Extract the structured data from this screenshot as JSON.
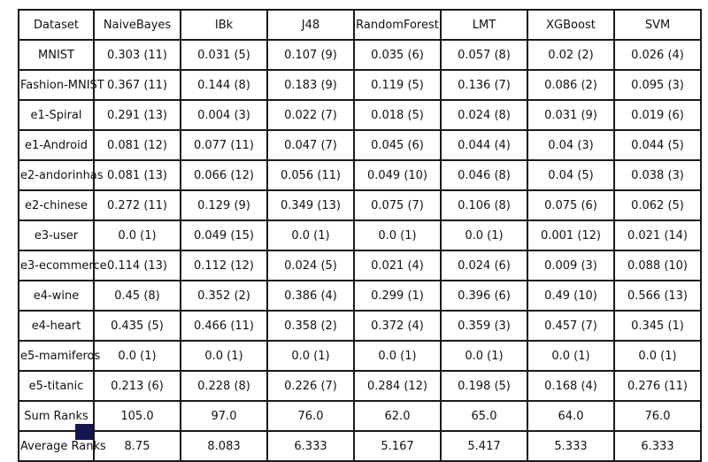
{
  "figure": {
    "background_color": "#ffffff",
    "grid_border_color": "#1a1a1a",
    "text_color": "#111111",
    "bottom_left_marker_color": "#16164f"
  },
  "chart_data": {
    "type": "table",
    "columns": [
      "Dataset",
      "NaiveBayes",
      "IBk",
      "J48",
      "RandomForest",
      "LMT",
      "XGBoost",
      "SVM"
    ],
    "rows": [
      {
        "dataset": "MNIST",
        "cells": [
          "0.303 (11)",
          "0.031 (5)",
          "0.107 (9)",
          "0.035 (6)",
          "0.057 (8)",
          "0.02 (2)",
          "0.026 (4)"
        ]
      },
      {
        "dataset": "Fashion-MNIST",
        "cells": [
          "0.367 (11)",
          "0.144 (8)",
          "0.183 (9)",
          "0.119 (5)",
          "0.136 (7)",
          "0.086 (2)",
          "0.095 (3)"
        ]
      },
      {
        "dataset": "e1-Spiral",
        "cells": [
          "0.291 (13)",
          "0.004 (3)",
          "0.022 (7)",
          "0.018 (5)",
          "0.024 (8)",
          "0.031 (9)",
          "0.019 (6)"
        ]
      },
      {
        "dataset": "e1-Android",
        "cells": [
          "0.081 (12)",
          "0.077 (11)",
          "0.047 (7)",
          "0.045 (6)",
          "0.044 (4)",
          "0.04 (3)",
          "0.044 (5)"
        ]
      },
      {
        "dataset": "e2-andorinhas",
        "cells": [
          "0.081 (13)",
          "0.066 (12)",
          "0.056 (11)",
          "0.049 (10)",
          "0.046 (8)",
          "0.04 (5)",
          "0.038 (3)"
        ]
      },
      {
        "dataset": "e2-chinese",
        "cells": [
          "0.272 (11)",
          "0.129 (9)",
          "0.349 (13)",
          "0.075 (7)",
          "0.106 (8)",
          "0.075 (6)",
          "0.062 (5)"
        ]
      },
      {
        "dataset": "e3-user",
        "cells": [
          "0.0 (1)",
          "0.049 (15)",
          "0.0 (1)",
          "0.0 (1)",
          "0.0 (1)",
          "0.001 (12)",
          "0.021 (14)"
        ]
      },
      {
        "dataset": "e3-ecommerce",
        "cells": [
          "0.114 (13)",
          "0.112 (12)",
          "0.024 (5)",
          "0.021 (4)",
          "0.024 (6)",
          "0.009 (3)",
          "0.088 (10)"
        ]
      },
      {
        "dataset": "e4-wine",
        "cells": [
          "0.45 (8)",
          "0.352 (2)",
          "0.386 (4)",
          "0.299 (1)",
          "0.396 (6)",
          "0.49 (10)",
          "0.566 (13)"
        ]
      },
      {
        "dataset": "e4-heart",
        "cells": [
          "0.435 (5)",
          "0.466 (11)",
          "0.358 (2)",
          "0.372 (4)",
          "0.359 (3)",
          "0.457 (7)",
          "0.345 (1)"
        ]
      },
      {
        "dataset": "e5-mamiferos",
        "cells": [
          "0.0 (1)",
          "0.0 (1)",
          "0.0 (1)",
          "0.0 (1)",
          "0.0 (1)",
          "0.0 (1)",
          "0.0 (1)"
        ]
      },
      {
        "dataset": "e5-titanic",
        "cells": [
          "0.213 (6)",
          "0.228 (8)",
          "0.226 (7)",
          "0.284 (12)",
          "0.198 (5)",
          "0.168 (4)",
          "0.276 (11)"
        ]
      },
      {
        "dataset": "Sum Ranks",
        "cells": [
          "105.0",
          "97.0",
          "76.0",
          "62.0",
          "65.0",
          "64.0",
          "76.0"
        ]
      },
      {
        "dataset": "Average Ranks",
        "cells": [
          "8.75",
          "8.083",
          "6.333",
          "5.167",
          "5.417",
          "5.333",
          "6.333"
        ]
      }
    ]
  }
}
